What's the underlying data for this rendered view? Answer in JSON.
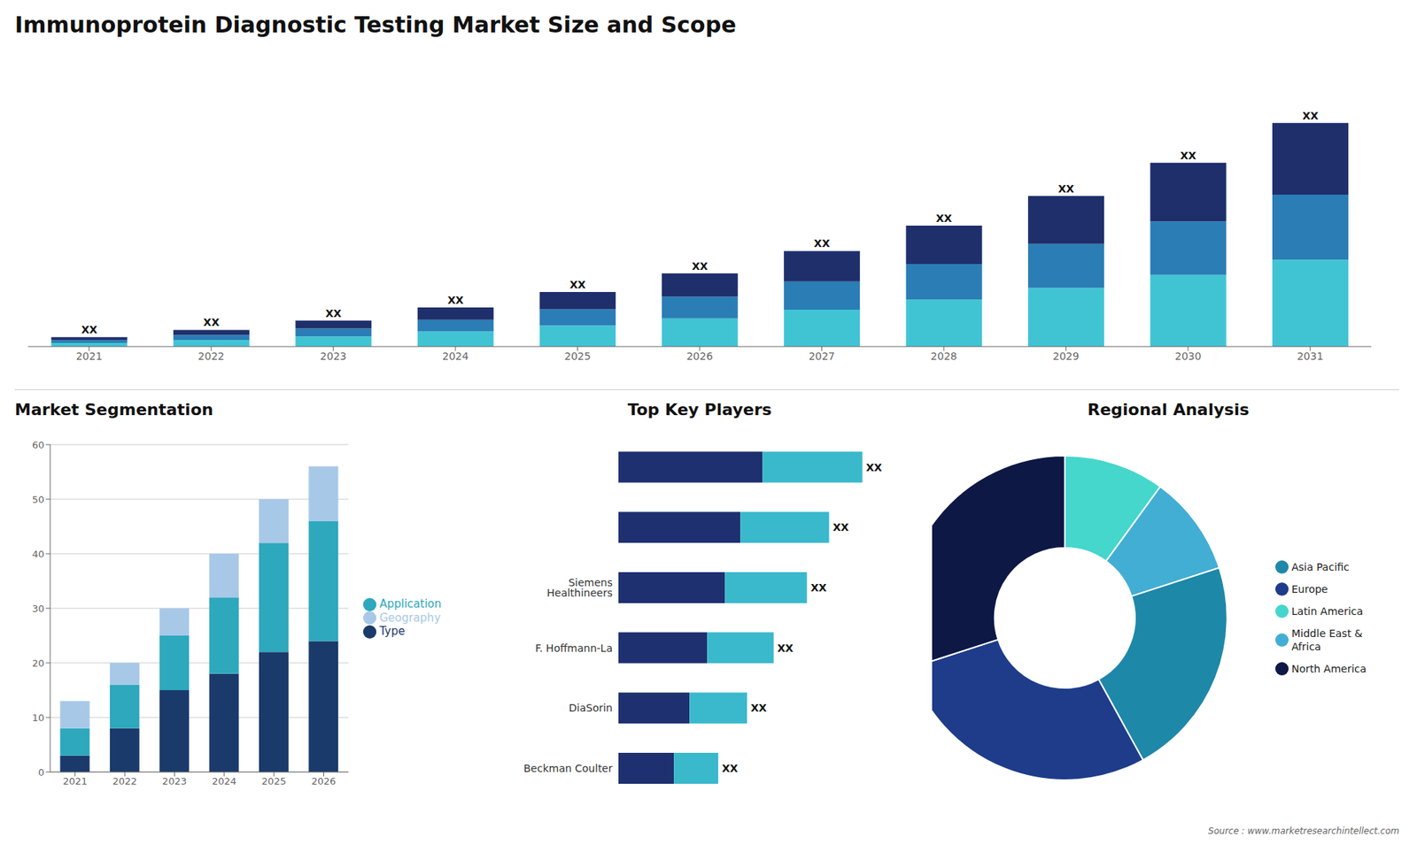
{
  "chart_data": [
    {
      "type": "bar",
      "title": "Immunoprotein Diagnostic Testing Market Size and Scope",
      "annotations": [
        "Source : www.marketresearchintellect.com"
      ],
      "categories": [
        "2021",
        "2022",
        "2023",
        "2024",
        "2025",
        "2026",
        "2027",
        "2028",
        "2029",
        "2030",
        "2031"
      ],
      "stacked": true,
      "series": [
        {
          "color": "#40c4d4",
          "values": [
            1.0,
            1.8,
            2.8,
            4.2,
            5.8,
            7.8,
            10.2,
            13.0,
            16.2,
            19.8,
            24.0
          ]
        },
        {
          "color": "#2a7db5",
          "values": [
            0.8,
            1.4,
            2.2,
            3.2,
            4.5,
            6.0,
            7.8,
            9.8,
            12.2,
            14.8,
            18.0
          ]
        },
        {
          "color": "#1e2f6b",
          "values": [
            0.8,
            1.4,
            2.2,
            3.4,
            4.8,
            6.4,
            8.4,
            10.6,
            13.2,
            16.2,
            19.8
          ],
          "value_labels": [
            "XX",
            "XX",
            "XX",
            "XX",
            "XX",
            "XX",
            "XX",
            "XX",
            "XX",
            "XX",
            "XX"
          ]
        }
      ],
      "ylim": [
        0,
        75.396
      ],
      "tick_labels": "x",
      "grid": false
    },
    {
      "type": "bar",
      "title": "Market Segmentation",
      "categories": [
        "2021",
        "2022",
        "2023",
        "2024",
        "2025",
        "2026"
      ],
      "stacked": true,
      "series": [
        {
          "name": "Type",
          "color": "#1a3a6b",
          "values": [
            3,
            8,
            15,
            18,
            22,
            24
          ]
        },
        {
          "name": "Application",
          "color": "#2da8bc",
          "values": [
            5,
            8,
            10,
            14,
            20,
            22
          ]
        },
        {
          "name": "Geography",
          "color": "#a8c8e8",
          "values": [
            5,
            4,
            5,
            8,
            8,
            10
          ]
        }
      ],
      "ylim": [
        0,
        60
      ],
      "yticks": [
        0,
        10,
        20,
        30,
        40,
        50,
        60
      ],
      "grid": true,
      "legend": "right"
    },
    {
      "type": "bar",
      "title": "Top Key Players",
      "orientation": "horizontal",
      "stacked": true,
      "categories": [
        "Beckman Coulter",
        "DiaSorin",
        "F. Hoffmann-La",
        "Siemens Healthineers",
        null,
        null
      ],
      "series": [
        {
          "color": "#1e3070",
          "values": [
            2.5,
            3.2,
            4.0,
            4.8,
            5.5,
            6.5
          ]
        },
        {
          "color": "#3ab8cc",
          "values": [
            2.0,
            2.6,
            3.0,
            3.7,
            4.0,
            4.5
          ],
          "value_labels": [
            "XX",
            "XX",
            "XX",
            "XX",
            "XX",
            "XX"
          ]
        }
      ],
      "xlim": [
        0,
        12.98
      ],
      "tick_labels": "y",
      "grid": false
    },
    {
      "type": "pie",
      "title": "Regional Analysis",
      "categories": [
        "Latin America",
        "Middle East &\nAfrica",
        "Asia Pacific",
        "Europe",
        "North America"
      ],
      "values": [
        10,
        10,
        22,
        28,
        30
      ],
      "colors": [
        "#45d6cc",
        "#42aed4",
        "#1e88a8",
        "#1e3c8a",
        "#0d1845"
      ],
      "legend": "right"
    }
  ]
}
